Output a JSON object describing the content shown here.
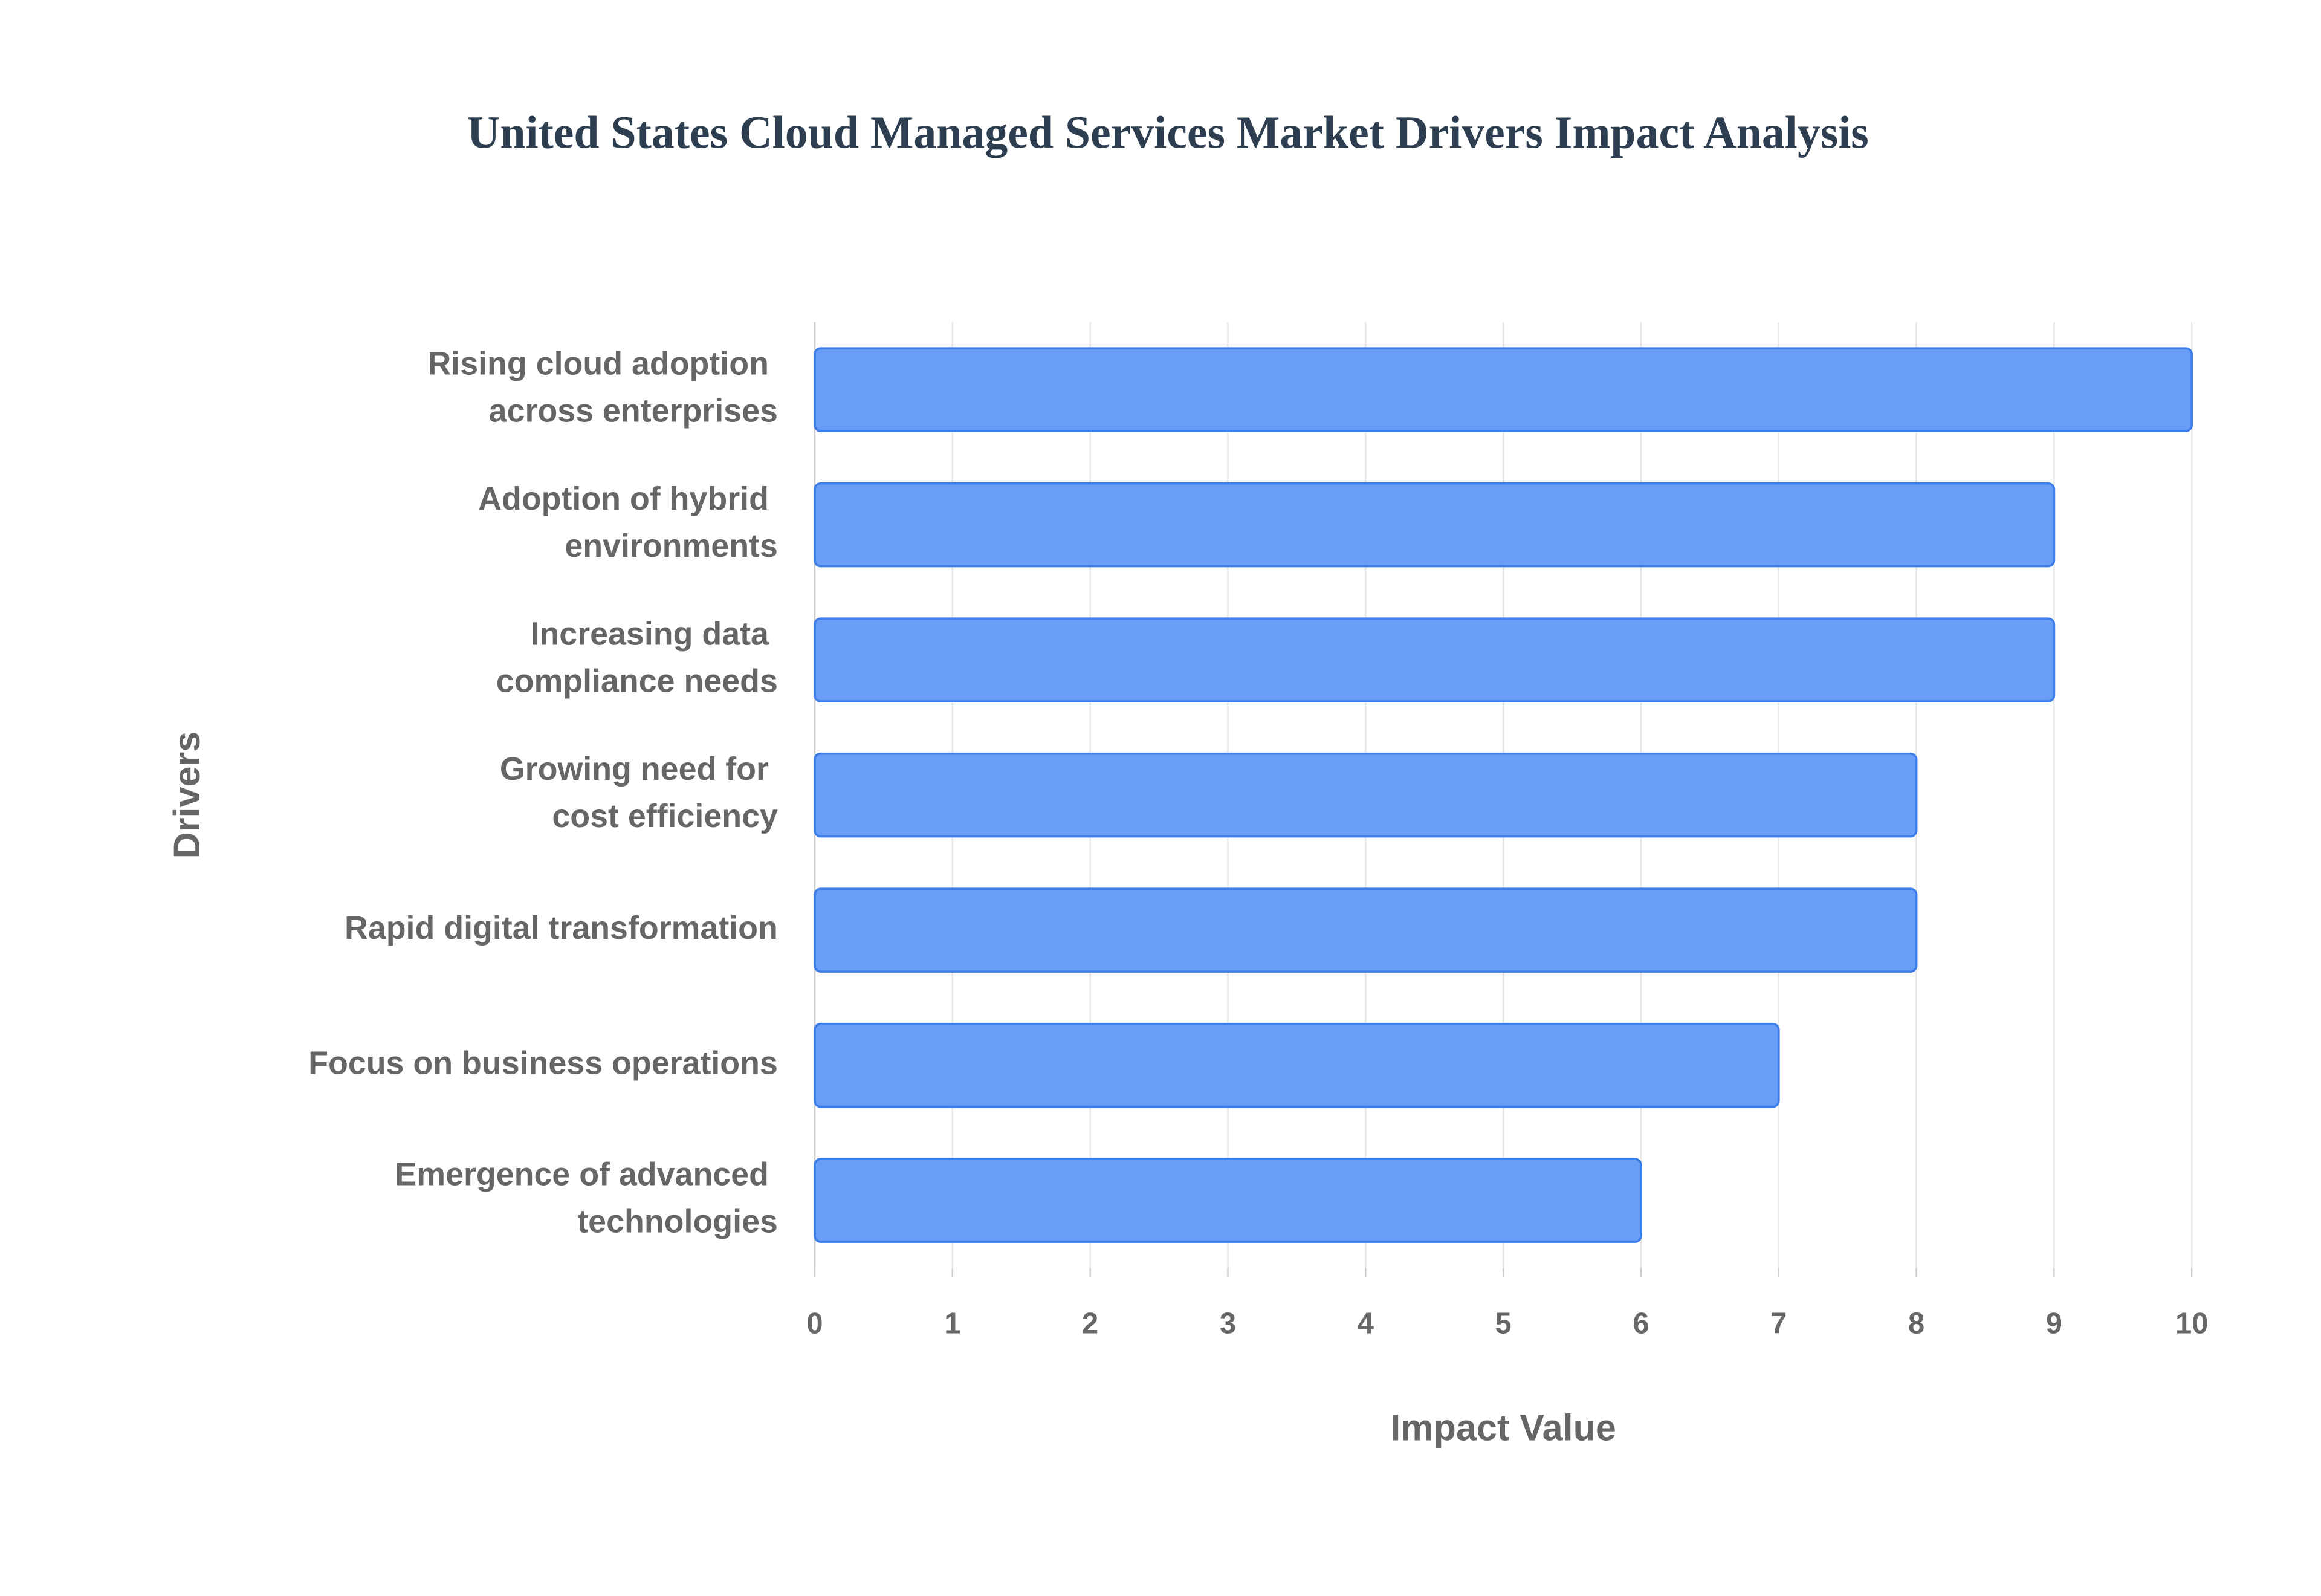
{
  "chart_data": {
    "type": "bar",
    "orientation": "horizontal",
    "title": "United States Cloud Managed Services Market Drivers Impact Analysis",
    "x_label": "Impact Value",
    "y_label": "Drivers",
    "categories": [
      "Rising cloud adoption across enterprises",
      "Adoption of hybrid environments",
      "Increasing data compliance needs",
      "Growing need for cost efficiency",
      "Rapid digital transformation",
      "Focus on business operations",
      "Emergence of advanced technologies"
    ],
    "values": [
      10,
      9,
      9,
      8,
      8,
      7,
      6
    ],
    "color": "#6299f5",
    "xlim": [
      0,
      10
    ],
    "xticks": [
      0,
      1,
      2,
      3,
      4,
      5,
      6,
      7,
      8,
      9,
      10
    ],
    "grid": true
  }
}
